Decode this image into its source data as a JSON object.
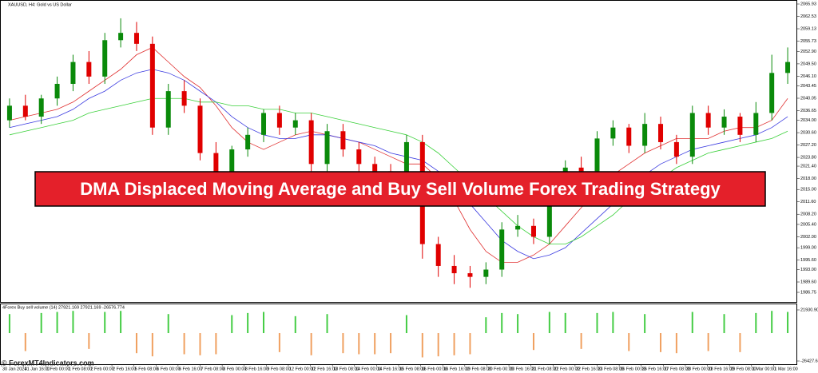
{
  "chart_data": {
    "type": "candlestick",
    "title": "XAUUSD, H4:  Gold vs US Dollar",
    "open": [
      2034,
      2038,
      2035,
      2040,
      2044,
      2050,
      2046,
      2056,
      2058,
      2055,
      2032,
      2042,
      2038,
      2025,
      2018,
      2026,
      2030,
      2036,
      2032,
      2034,
      2022,
      2031,
      2026,
      2022,
      2020,
      2019,
      2028,
      2000,
      1994,
      1992,
      1991,
      1993,
      2004,
      2005,
      2002,
      2018,
      2021,
      2020,
      2029,
      2032,
      2027,
      2033,
      2028,
      2024,
      2036,
      2032,
      2035,
      2030,
      2036,
      2047
    ],
    "high": [
      2040,
      2041,
      2041,
      2046,
      2052,
      2053,
      2058,
      2062,
      2061,
      2057,
      2044,
      2045,
      2040,
      2028,
      2027,
      2032,
      2037,
      2038,
      2036,
      2036,
      2033,
      2033,
      2028,
      2024,
      2022,
      2030,
      2030,
      2002,
      1997,
      1994,
      1995,
      2006,
      2008,
      2007,
      2020,
      2023,
      2024,
      2031,
      2034,
      2033,
      2036,
      2035,
      2030,
      2038,
      2038,
      2037,
      2036,
      2039,
      2052,
      2054
    ],
    "low": [
      2032,
      2034,
      2033,
      2038,
      2042,
      2044,
      2044,
      2054,
      2053,
      2030,
      2030,
      2036,
      2023,
      2016,
      2016,
      2024,
      2028,
      2030,
      2030,
      2020,
      2020,
      2024,
      2020,
      2018,
      2017,
      2018,
      1996,
      1991,
      1989,
      1988,
      1989,
      1991,
      2002,
      2000,
      2000,
      2016,
      2018,
      2018,
      2027,
      2025,
      2025,
      2026,
      2022,
      2022,
      2030,
      2030,
      2028,
      2028,
      2034,
      2044
    ],
    "close": [
      2038,
      2035,
      2040,
      2044,
      2050,
      2046,
      2056,
      2058,
      2055,
      2032,
      2042,
      2038,
      2025,
      2018,
      2026,
      2030,
      2036,
      2032,
      2034,
      2022,
      2031,
      2026,
      2022,
      2020,
      2019,
      2028,
      2000,
      1994,
      1992,
      1991,
      1993,
      2004,
      2005,
      2002,
      2018,
      2021,
      2020,
      2029,
      2032,
      2027,
      2033,
      2028,
      2024,
      2036,
      2032,
      2035,
      2030,
      2036,
      2047,
      2050
    ],
    "up_color": "#0a8a0a",
    "down_color": "#e00000",
    "series": [
      {
        "color": "#e03030",
        "values": [
          2034,
          2035,
          2036,
          2037,
          2039,
          2042,
          2045,
          2048,
          2052,
          2054,
          2050,
          2046,
          2043,
          2038,
          2032,
          2028,
          2026,
          2028,
          2030,
          2031,
          2030,
          2029,
          2028,
          2026,
          2024,
          2022,
          2022,
          2018,
          2012,
          2004,
          1998,
          1995,
          1995,
          1997,
          2000,
          2005,
          2010,
          2015,
          2019,
          2022,
          2025,
          2027,
          2029,
          2029,
          2029,
          2031,
          2032,
          2032,
          2034,
          2040
        ]
      },
      {
        "color": "#3a3ae0",
        "values": [
          2032,
          2033,
          2034,
          2035,
          2037,
          2040,
          2042,
          2045,
          2047,
          2048,
          2047,
          2045,
          2042,
          2039,
          2035,
          2032,
          2030,
          2029,
          2029,
          2030,
          2030,
          2029,
          2028,
          2027,
          2025,
          2024,
          2023,
          2020,
          2016,
          2011,
          2006,
          2001,
          1998,
          1996,
          1997,
          1999,
          2003,
          2007,
          2011,
          2015,
          2019,
          2022,
          2024,
          2026,
          2027,
          2028,
          2029,
          2030,
          2032,
          2035
        ]
      },
      {
        "color": "#3ad03a",
        "values": [
          2030,
          2031,
          2032,
          2033,
          2034,
          2036,
          2037,
          2038,
          2039,
          2040,
          2040,
          2040,
          2039,
          2039,
          2038,
          2038,
          2037,
          2037,
          2036,
          2036,
          2035,
          2034,
          2033,
          2032,
          2031,
          2030,
          2028,
          2025,
          2021,
          2017,
          2013,
          2009,
          2005,
          2002,
          2000,
          2000,
          2002,
          2005,
          2008,
          2012,
          2015,
          2018,
          2021,
          2023,
          2025,
          2026,
          2027,
          2028,
          2029,
          2031
        ]
      }
    ],
    "ylim": [
      1984.12,
      2067.03
    ],
    "yticks": [
      {
        "value": 2065.93,
        "label": "2065.93"
      },
      {
        "value": 2062.53,
        "label": "2062.53"
      },
      {
        "value": 2059.13,
        "label": "2059.13"
      },
      {
        "value": 2055.73,
        "label": "2055.73"
      },
      {
        "value": 2052.9,
        "label": "2052.90"
      },
      {
        "value": 2049.5,
        "label": "2049.50"
      },
      {
        "value": 2046.1,
        "label": "2046.10"
      },
      {
        "value": 2043.45,
        "label": "2043.45"
      },
      {
        "value": 2040.05,
        "label": "2040.05"
      },
      {
        "value": 2036.65,
        "label": "2036.65"
      },
      {
        "value": 2034.0,
        "label": "2034.00"
      },
      {
        "value": 2030.6,
        "label": "2030.60"
      },
      {
        "value": 2027.2,
        "label": "2027.20"
      },
      {
        "value": 2023.8,
        "label": "2023.80"
      },
      {
        "value": 2021.4,
        "label": "2021.40"
      },
      {
        "value": 2018.0,
        "label": "2018.00"
      },
      {
        "value": 2015.0,
        "label": "2015.00"
      },
      {
        "value": 2011.6,
        "label": "2011.60"
      },
      {
        "value": 2008.2,
        "label": "2008.20"
      },
      {
        "value": 2005.4,
        "label": "2005.40"
      },
      {
        "value": 2002.0,
        "label": "2002.00"
      },
      {
        "value": 1999.0,
        "label": "1999.00"
      },
      {
        "value": 1995.6,
        "label": "1995.60"
      },
      {
        "value": 1993.0,
        "label": "1993.00"
      },
      {
        "value": 1989.6,
        "label": "1989.60"
      },
      {
        "value": 1986.75,
        "label": "1986.75"
      }
    ],
    "x_labels": [
      "30 Jan 2024",
      "31 Jan 16:00",
      "1 Feb 00:00",
      "1 Feb 08:00",
      "2 Feb 00:00",
      "2 Feb 16:00",
      "5 Feb 08:00",
      "6 Feb 00:00",
      "6 Feb 16:00",
      "7 Feb 08:00",
      "8 Feb 00:00",
      "8 Feb 16:00",
      "9 Feb 08:00",
      "12 Feb 00:00",
      "12 Feb 16:00",
      "13 Feb 08:00",
      "14 Feb 00:00",
      "14 Feb 16:00",
      "15 Feb 08:00",
      "16 Feb 00:00",
      "16 Feb 16:00",
      "19 Feb 08:00",
      "20 Feb 00:00",
      "20 Feb 16:00",
      "21 Feb 08:00",
      "22 Feb 00:00",
      "22 Feb 16:00",
      "23 Feb 08:00",
      "26 Feb 00:00",
      "26 Feb 16:00",
      "27 Feb 08:00",
      "28 Feb 00:00",
      "28 Feb 16:00",
      "29 Feb 08:00",
      "1 Mar 00:00",
      "1 Mar 16:00"
    ]
  },
  "indicator": {
    "title": "4Forex Buy sell volume (14) 27921.169 27921.169 -26576.774",
    "values": [
      18000,
      -17000,
      19000,
      20000,
      21000,
      -15000,
      20000,
      21000,
      -19000,
      -22000,
      18000,
      -20000,
      -21000,
      -20000,
      17000,
      19000,
      20000,
      -18000,
      16000,
      -21000,
      18000,
      -19000,
      -20000,
      -20000,
      -19000,
      17000,
      -23000,
      -22000,
      -21000,
      -20000,
      15000,
      19000,
      18000,
      -16000,
      20000,
      19000,
      -15000,
      19000,
      20000,
      -17000,
      18000,
      -18000,
      -19000,
      20000,
      -17000,
      18000,
      -18000,
      19000,
      21000,
      20000
    ],
    "up_color": "#44cc44",
    "down_color": "#f0a060",
    "ylim": [
      -26427.68,
      21930.9
    ],
    "yticks": [
      {
        "value": 21930.9,
        "label": "21930.90"
      },
      {
        "value": -26427.68,
        "label": "-26427.68"
      }
    ]
  },
  "banner": "DMA Displaced Moving Average and Buy Sell Volume Forex Trading Strategy",
  "watermark": "© ForexMT4Indicators.com"
}
